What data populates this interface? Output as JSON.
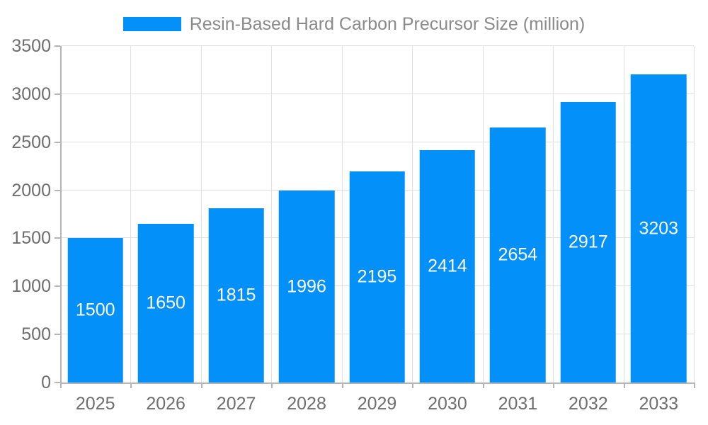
{
  "chart_data": {
    "type": "bar",
    "categories": [
      "2025",
      "2026",
      "2027",
      "2028",
      "2029",
      "2030",
      "2031",
      "2032",
      "2033"
    ],
    "series": [
      {
        "name": "Resin-Based Hard Carbon Precursor Size (million)",
        "values": [
          1500,
          1650,
          1815,
          1996,
          2195,
          2414,
          2654,
          2917,
          3203
        ]
      }
    ],
    "data_labels_shown": true,
    "xlabel": "",
    "ylabel": "",
    "ylim": [
      0,
      3500
    ],
    "y_ticks": [
      0,
      500,
      1000,
      1500,
      2000,
      2500,
      3000,
      3500
    ],
    "grid": true,
    "legend_position": "top",
    "colors": {
      "bar": "#0490F9",
      "bar_label_text": "#ffffff",
      "gridline": "#e0e0e0",
      "axis_line": "#b5b5b5",
      "tick_label_text": "#6e6e6e",
      "legend_text": "#8a8a8a",
      "background": "#ffffff"
    }
  }
}
